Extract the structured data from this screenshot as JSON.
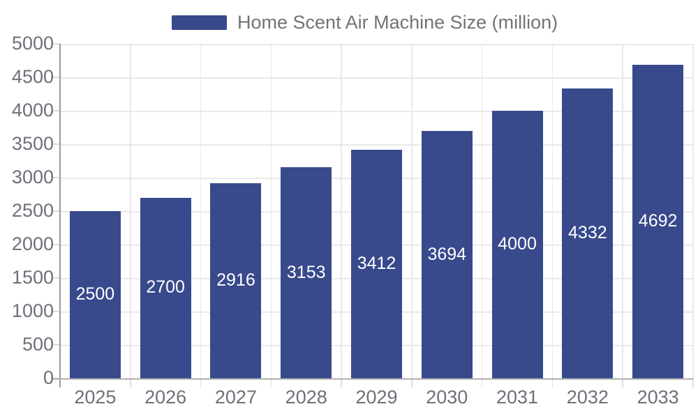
{
  "chart_data": {
    "type": "bar",
    "title": "Home Scent Air Machine Size (million)",
    "series_name": "Home Scent Air Machine Size (million)",
    "categories": [
      "2025",
      "2026",
      "2027",
      "2028",
      "2029",
      "2030",
      "2031",
      "2032",
      "2033"
    ],
    "values": [
      2500,
      2700,
      2916,
      3153,
      3412,
      3694,
      4000,
      4332,
      4692
    ],
    "xlabel": "",
    "ylabel": "",
    "ylim": [
      0,
      5000
    ],
    "ytick_interval": 500,
    "yticks": [
      0,
      500,
      1000,
      1500,
      2000,
      2500,
      3000,
      3500,
      4000,
      4500,
      5000
    ],
    "grid": true,
    "legend_position": "top-center",
    "bar_labels_inside": true,
    "colors": {
      "bar": "#384A8C",
      "bar_label": "#FFFFFF",
      "axis_label": "#6E7079",
      "legend_text": "#737373",
      "grid_line": "#E9E9E9",
      "y_axis_line": "#999999",
      "x_axis_line": "#B0B0B0"
    }
  }
}
